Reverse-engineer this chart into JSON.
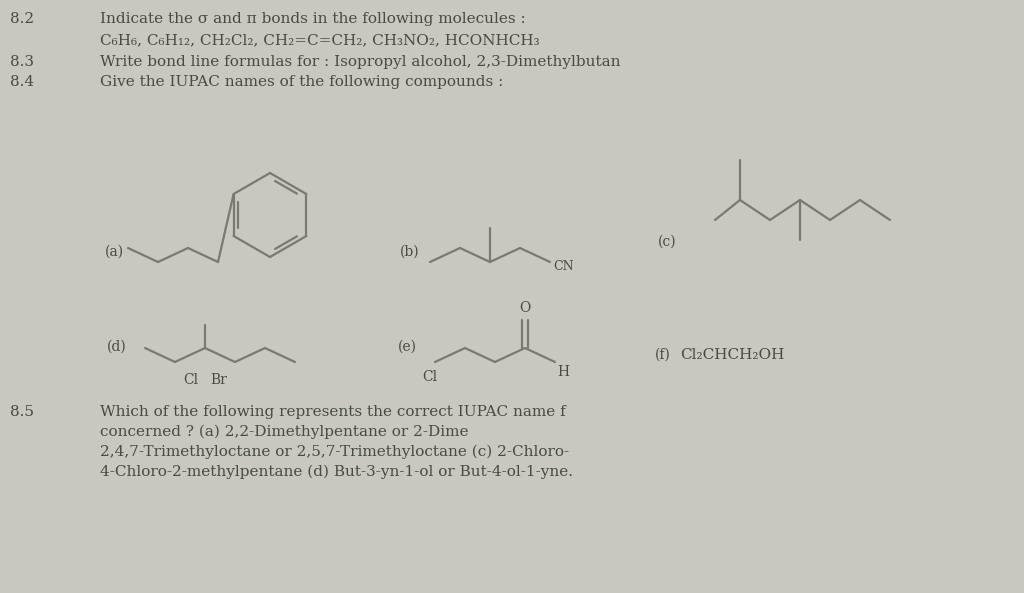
{
  "bg_color": "#c8c7c0",
  "text_color": "#4a4a45",
  "line_color": "#7a7a72",
  "title_82": "8.2",
  "text_82": "Indicate the σ and π bonds in the following molecules :",
  "text_82b": "C₆H₆, C₆H₁₂, CH₂Cl₂, CH₂=C=CH₂, CH₃NO₂, HCONHCH₃",
  "title_83": "8.3",
  "text_83": "Write bond line formulas for : Isopropyl alcohol, 2,3-Dimethylbutan",
  "title_84": "8.4",
  "text_84": "Give the IUPAC names of the following compounds :",
  "label_a": "(a)",
  "label_b": "(b)",
  "label_c": "(c)",
  "label_d": "(d)",
  "label_e": "(e)",
  "label_f": "(f)",
  "text_f": "Cl₂CHCH₂OH",
  "label_cn": "CN",
  "label_cl1": "Cl",
  "label_br": "Br",
  "label_cl2": "Cl",
  "label_h": "H",
  "label_o": "O",
  "title_85": "8.5",
  "text_85a": "Which of the following represents the correct IUPAC name f",
  "text_85b": "concerned ? (a) 2,2-Dimethylpentane or 2-Dime",
  "text_85c": "2,4,7-Trimethyloctane or 2,5,7-Trimethyloctane (c) 2-Chloro-",
  "text_85d": "4-Chloro-2-methylpentane (d) But-3-yn-1-ol or But-4-ol-1-yne."
}
